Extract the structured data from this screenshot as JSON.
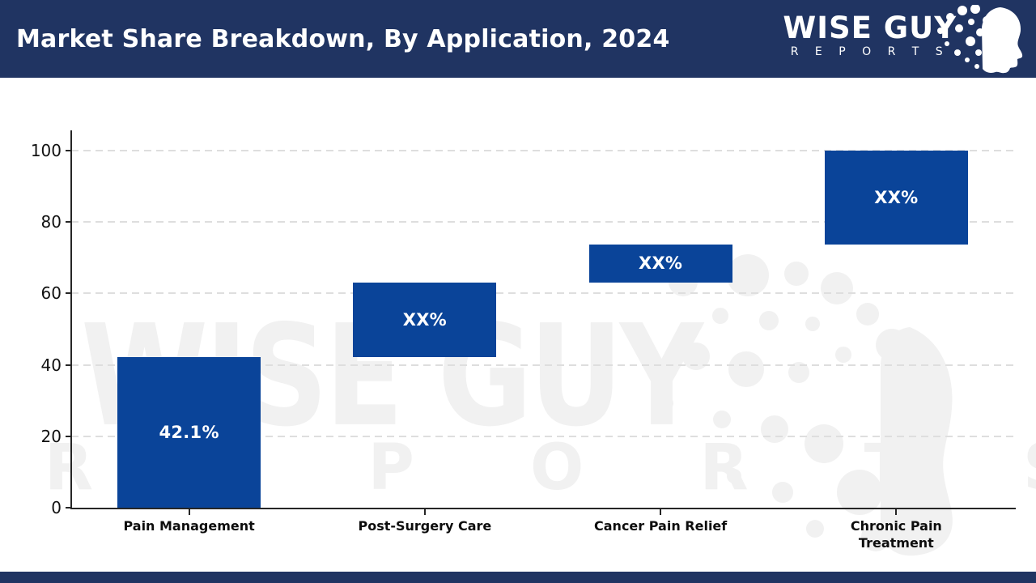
{
  "header": {
    "title": "Market Share Breakdown, By Application, 2024",
    "logo": {
      "line1": "WISE GUY",
      "line2": "R E P O R T S"
    }
  },
  "watermark": {
    "line1": "WISE GUY",
    "line2": "R E P O R T S"
  },
  "chart_data": {
    "type": "bar",
    "subtype": "waterfall",
    "title": "Market Share Breakdown, By Application, 2024",
    "categories": [
      "Pain Management",
      "Post-Surgery Care",
      "Cancer Pain Relief",
      "Chronic Pain\nTreatment"
    ],
    "bars": [
      {
        "category": "Pain Management",
        "start": 0,
        "end": 42.1,
        "label": "42.1%"
      },
      {
        "category": "Post-Surgery Care",
        "start": 42.1,
        "end": 63.1,
        "label": "XX%"
      },
      {
        "category": "Cancer Pain Relief",
        "start": 63.1,
        "end": 73.7,
        "label": "XX%"
      },
      {
        "category": "Chronic Pain Treatment",
        "start": 73.7,
        "end": 100,
        "label": "XX%"
      }
    ],
    "ylim": [
      0,
      100
    ],
    "yticks": [
      0,
      20,
      40,
      60,
      80,
      100
    ],
    "xlabel": "",
    "ylabel": "",
    "grid": "horizontal-dashed",
    "legend": "none",
    "bar_color": "#0a4499",
    "value_label_color": "#ffffff"
  },
  "colors": {
    "header_bg": "#203462",
    "footer_bg": "#203462",
    "bar": "#0a4499",
    "gridline": "#dedede",
    "axis": "#262626",
    "watermark": "#f1f1f1"
  }
}
